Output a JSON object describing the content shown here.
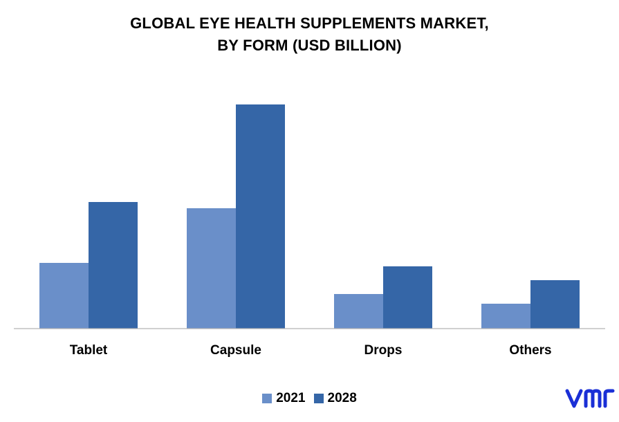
{
  "chart_data": {
    "type": "bar",
    "title_line1": "GLOBAL EYE HEALTH SUPPLEMENTS MARKET,",
    "title_line2": "BY FORM (USD BILLION)",
    "categories": [
      "Tablet",
      "Capsule",
      "Drops",
      "Others"
    ],
    "series": [
      {
        "name": "2021",
        "color": "#6a8fc9",
        "values": [
          0.95,
          1.74,
          0.5,
          0.36
        ]
      },
      {
        "name": "2028",
        "color": "#3566a7",
        "values": [
          1.83,
          3.24,
          0.9,
          0.7
        ]
      }
    ],
    "ylim": [
      0,
      3.6
    ],
    "grid": false,
    "legend_position": "bottom"
  },
  "brand": {
    "logo_name": "vmr-logo",
    "color": "#1a2fd6"
  }
}
